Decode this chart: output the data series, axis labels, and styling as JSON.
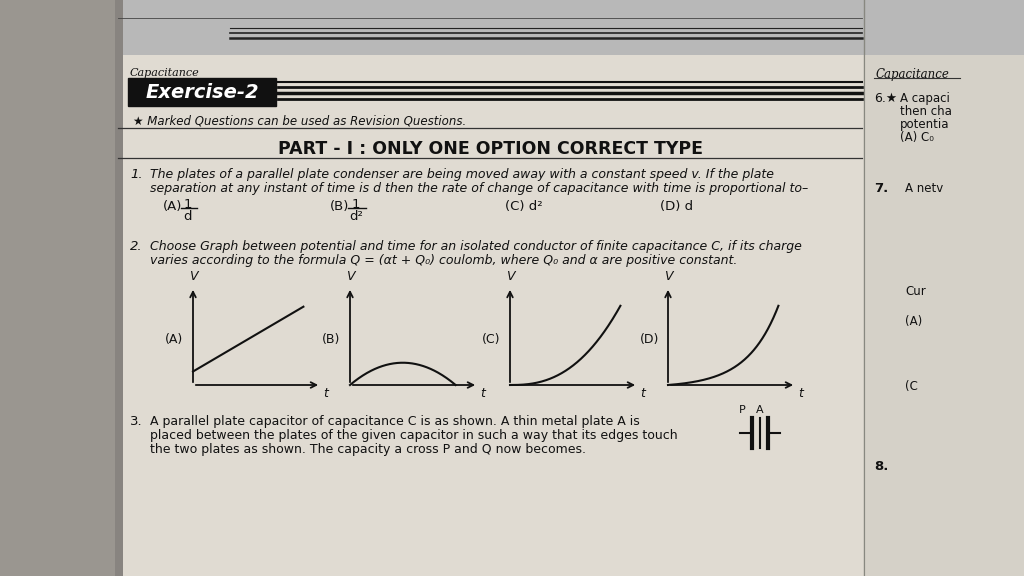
{
  "bg_left_color": "#a8a49c",
  "bg_page_color": "#e2ddd4",
  "bg_right_color": "#d8d4cc",
  "text_color": "#111111",
  "axis_color": "#111111",
  "curve_color": "#111111",
  "header_line_color": "#222222",
  "exercise_box_color": "#1a1a1a",
  "exercise_text": "Exercise-2",
  "capacitance_label": "Capacitance",
  "marked_text": "★ Marked Questions can be used as Revision Questions.",
  "part_title": "PART - I : ONLY ONE OPTION CORRECT TYPE",
  "q1_num": "1.",
  "q1_line1": "The plates of a parallel plate condenser are being moved away with a constant speed v. If the plate",
  "q1_line2": "separation at any instant of time is d then the rate of change of capacitance with time is proportional to–",
  "q1_A": "(A)",
  "q1_B": "(B)",
  "q1_C": "(C) d²",
  "q1_D": "(D) d",
  "q2_num": "2.",
  "q2_line1": "Choose Graph between potential and time for an isolated conductor of finite capacitance C, if its charge",
  "q2_line2": "varies according to the formula Q = (αt + Q₀) coulomb, where Q₀ and α are positive constant.",
  "q2_labels": [
    "(A)",
    "(B)",
    "(C)",
    "(D)"
  ],
  "q3_num": "3.",
  "q3_line1": "A parallel plate capacitor of capacitance C is as shown. A thin metal plate A is",
  "q3_line2": "placed between the plates of the given capacitor in such a way that its edges touch",
  "q3_line3": "the two plates as shown. The capacity a cross P and Q now becomes.",
  "right_capacitance": "Capacitance",
  "right_6": "6.★",
  "right_6a": "A capaci",
  "right_6b": "then cha",
  "right_6c": "potentia",
  "right_6d": "(A) C₀",
  "right_7": "7.",
  "right_7a": "A netv",
  "right_cur": "Cur",
  "right_A": "(A)",
  "right_C": "(C",
  "right_8": "8."
}
